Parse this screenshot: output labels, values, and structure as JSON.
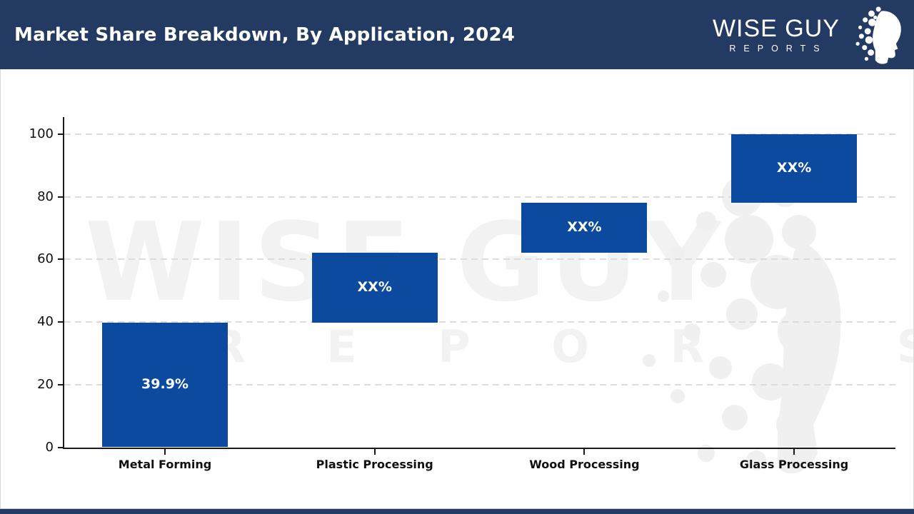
{
  "header": {
    "title": "Market Share Breakdown, By Application, 2024",
    "logo_line1": "WISE GUY",
    "logo_line2": "REPORTS",
    "bg_color": "#233a63"
  },
  "watermark": {
    "line1": "WISE GUY",
    "line2": "R E P O R T S"
  },
  "chart_data": {
    "type": "bar",
    "variant": "waterfall",
    "title": "Market Share Breakdown, By Application, 2024",
    "categories": [
      "Metal Forming",
      "Plastic Processing",
      "Wood Processing",
      "Glass Processing"
    ],
    "bars": [
      {
        "category": "Metal Forming",
        "start": 0,
        "end": 39.9,
        "label": "39.9%"
      },
      {
        "category": "Plastic Processing",
        "start": 39.9,
        "end": 62.2,
        "label": "XX%"
      },
      {
        "category": "Wood Processing",
        "start": 62.2,
        "end": 78.0,
        "label": "XX%"
      },
      {
        "category": "Glass Processing",
        "start": 78.0,
        "end": 100.0,
        "label": "XX%"
      }
    ],
    "xlabel": "",
    "ylabel": "",
    "yticks": [
      0,
      20,
      40,
      60,
      80,
      100
    ],
    "ylim": [
      0,
      105
    ],
    "grid": {
      "horizontal": true,
      "style": "dashed",
      "color": "#dcdcdc"
    },
    "legend": "none",
    "bar_color": "#0b4a9f",
    "bar_label_color": "#ffffff"
  }
}
